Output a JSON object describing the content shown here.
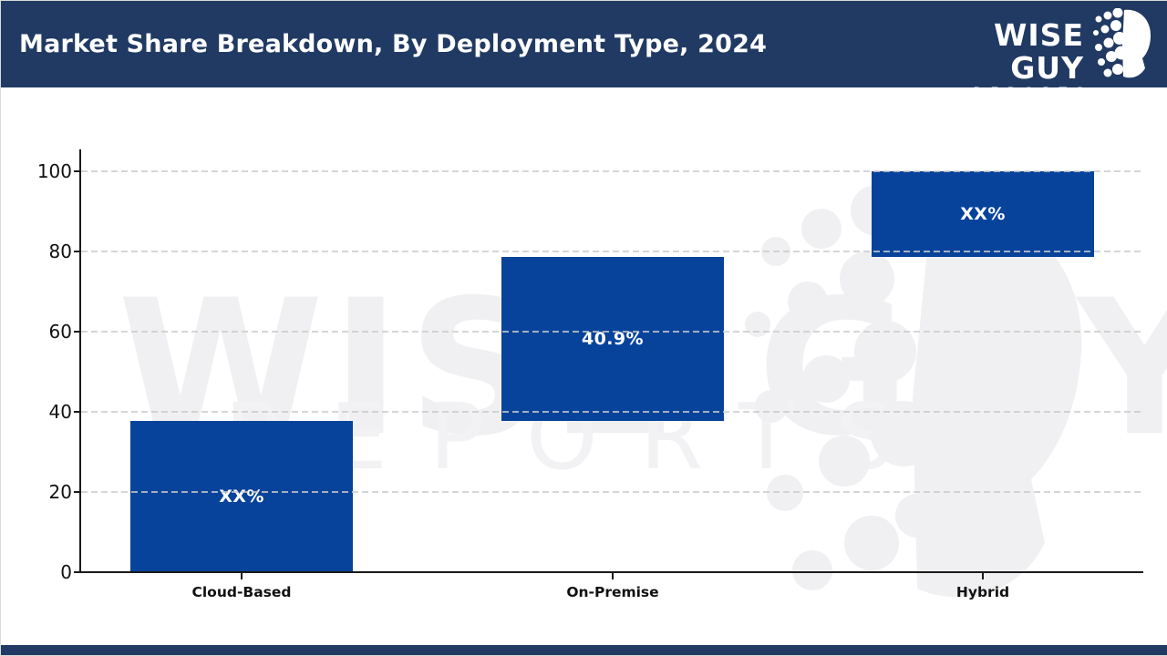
{
  "header": {
    "title": "Market Share Breakdown, By Deployment Type, 2024",
    "bg_color": "#213A63",
    "logo": {
      "brand_line1": "WISE GUY",
      "brand_line2": "REPORTS"
    }
  },
  "watermark": {
    "line1": "WISE GUY",
    "line2": "REPORTS"
  },
  "footer": {
    "bg_color": "#213A63"
  },
  "chart_data": {
    "type": "bar",
    "variant": "floating-waterfall-percentage",
    "title": "Market Share Breakdown, By Deployment Type, 2024",
    "categories": [
      "Cloud-Based",
      "On-Premise",
      "Hybrid"
    ],
    "segments": [
      {
        "category": "Cloud-Based",
        "start": 0,
        "end": 37.7,
        "value_label": "XX%"
      },
      {
        "category": "On-Premise",
        "start": 37.7,
        "end": 78.6,
        "value_label": "40.9%"
      },
      {
        "category": "Hybrid",
        "start": 78.6,
        "end": 100,
        "value_label": "XX%"
      }
    ],
    "xlabel": "",
    "ylabel": "",
    "ylim": [
      0,
      105
    ],
    "yticks": [
      0,
      20,
      40,
      60,
      80,
      100
    ],
    "grid": "dashed-horizontal",
    "legend": "none",
    "bar_color": "#07439B",
    "bar_label_color": "#FFFFFF"
  }
}
